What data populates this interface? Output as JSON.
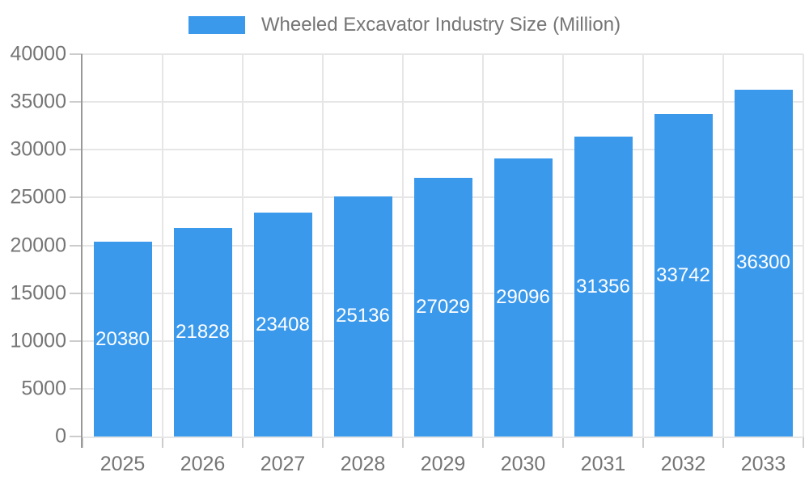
{
  "chart_data": {
    "type": "bar",
    "title": "",
    "legend": {
      "label": "Wheeled Excavator Industry Size (Million)",
      "position": "top"
    },
    "categories": [
      "2025",
      "2026",
      "2027",
      "2028",
      "2029",
      "2030",
      "2031",
      "2032",
      "2033"
    ],
    "series": [
      {
        "name": "Wheeled Excavator Industry Size (Million)",
        "values": [
          20380,
          21828,
          23408,
          25136,
          27029,
          29096,
          31356,
          33742,
          36300
        ]
      }
    ],
    "xlabel": "",
    "ylabel": "",
    "ylim": [
      0,
      40000
    ],
    "ytick_step": 5000,
    "ytick_labels": [
      "0",
      "5000",
      "10000",
      "15000",
      "20000",
      "25000",
      "30000",
      "35000",
      "40000"
    ],
    "grid": true,
    "value_labels_position": "center-inside",
    "colors": {
      "bar": "#3B99EC",
      "value_label_text": "#FFFFFF",
      "axis_text": "#757575",
      "gridline": "#E6E6E6",
      "axis_line": "#999999",
      "tick_mark": "#CCCCCC",
      "background": "#FFFFFF"
    }
  }
}
